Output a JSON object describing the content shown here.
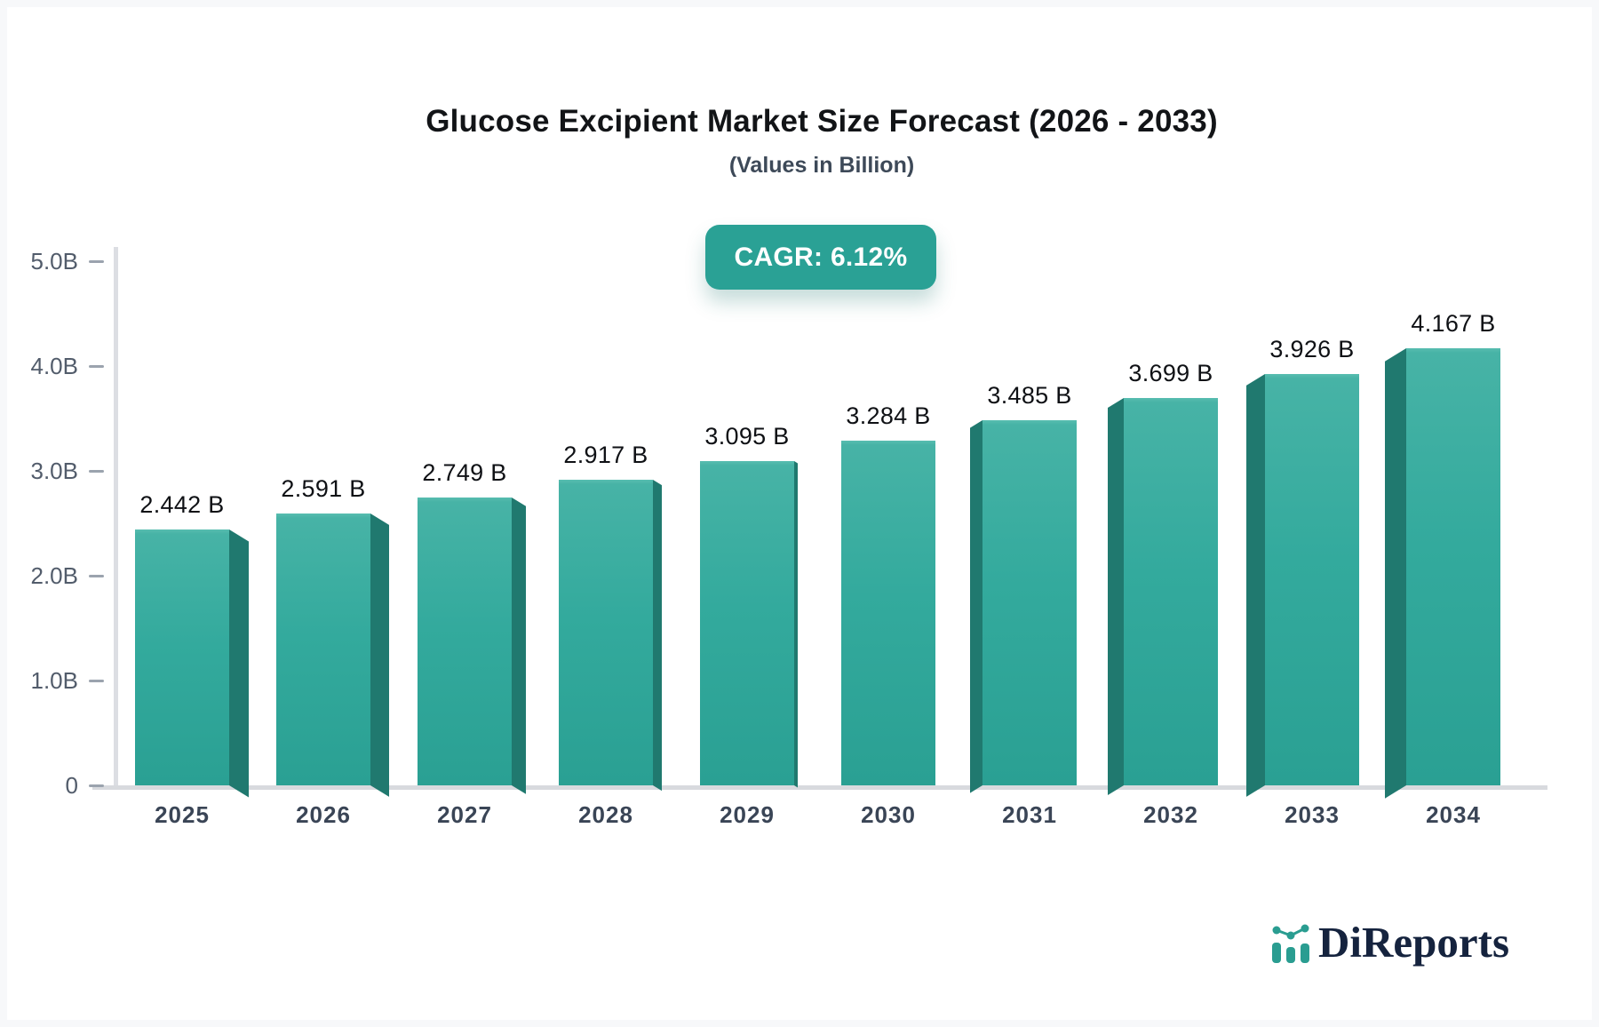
{
  "header": {
    "title": "Glucose Excipient Market Size Forecast (2026 - 2033)",
    "subtitle": "(Values in Billion)",
    "cagr_badge": "CAGR: 6.12%"
  },
  "brand": {
    "name": "DiReports"
  },
  "colors": {
    "bar_front_top": "#47b3a6",
    "bar_front_bottom": "#2aa093",
    "bar_side": "#20796f",
    "badge": "#2aa195",
    "axis_gray": "#d8dade",
    "title_text": "#121417",
    "brand_navy": "#15233e",
    "brand_teal": "#2a9d91"
  },
  "chart_data": {
    "type": "bar",
    "title": "Glucose Excipient Market Size Forecast (2026 - 2033)",
    "subtitle": "(Values in Billion)",
    "categories": [
      "2025",
      "2026",
      "2027",
      "2028",
      "2029",
      "2030",
      "2031",
      "2032",
      "2033",
      "2034"
    ],
    "values": [
      2.442,
      2.591,
      2.749,
      2.917,
      3.095,
      3.284,
      3.485,
      3.699,
      3.926,
      4.167
    ],
    "value_labels": [
      "2.442 B",
      "2.591 B",
      "2.749 B",
      "2.917 B",
      "3.095 B",
      "3.284 B",
      "3.485 B",
      "3.699 B",
      "3.926 B",
      "4.167 B"
    ],
    "xlabel": "",
    "ylabel": "",
    "ylim": [
      0,
      5
    ],
    "yticks": [
      {
        "label": "5.0B",
        "value": 5.0
      },
      {
        "label": "4.0B",
        "value": 4.0
      },
      {
        "label": "3.0B",
        "value": 3.0
      },
      {
        "label": "2.0B",
        "value": 2.0
      },
      {
        "label": "1.0B",
        "value": 1.0
      },
      {
        "label": "0",
        "value": 0.0
      }
    ],
    "grid": false,
    "legend": null,
    "annotations": [
      "CAGR: 6.12%"
    ]
  }
}
